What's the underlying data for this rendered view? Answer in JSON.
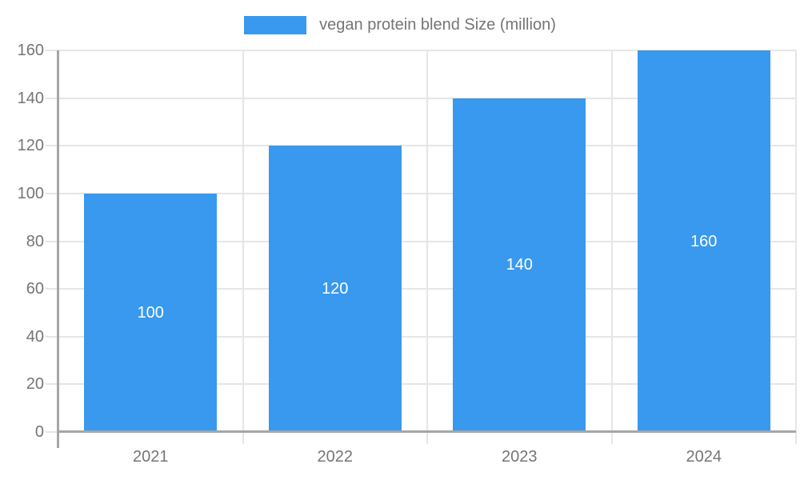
{
  "chart_data": {
    "type": "bar",
    "title": "",
    "xlabel": "",
    "ylabel": "",
    "legend": "vegan protein blend Size (million)",
    "legend_position": "top-center",
    "categories": [
      "2021",
      "2022",
      "2023",
      "2024"
    ],
    "values": [
      100,
      120,
      140,
      160
    ],
    "data_labels": [
      "100",
      "120",
      "140",
      "160"
    ],
    "yticks": [
      0,
      20,
      40,
      60,
      80,
      100,
      120,
      140,
      160
    ],
    "ylim": [
      0,
      160
    ],
    "grid": true,
    "bar_color": "#3899EF",
    "bar_label_color": "#ffffff",
    "axis_text_color": "#757575",
    "grid_color": "#e6e6e6",
    "axis_line_color": "#a6a6a6",
    "background_color": "#ffffff"
  }
}
